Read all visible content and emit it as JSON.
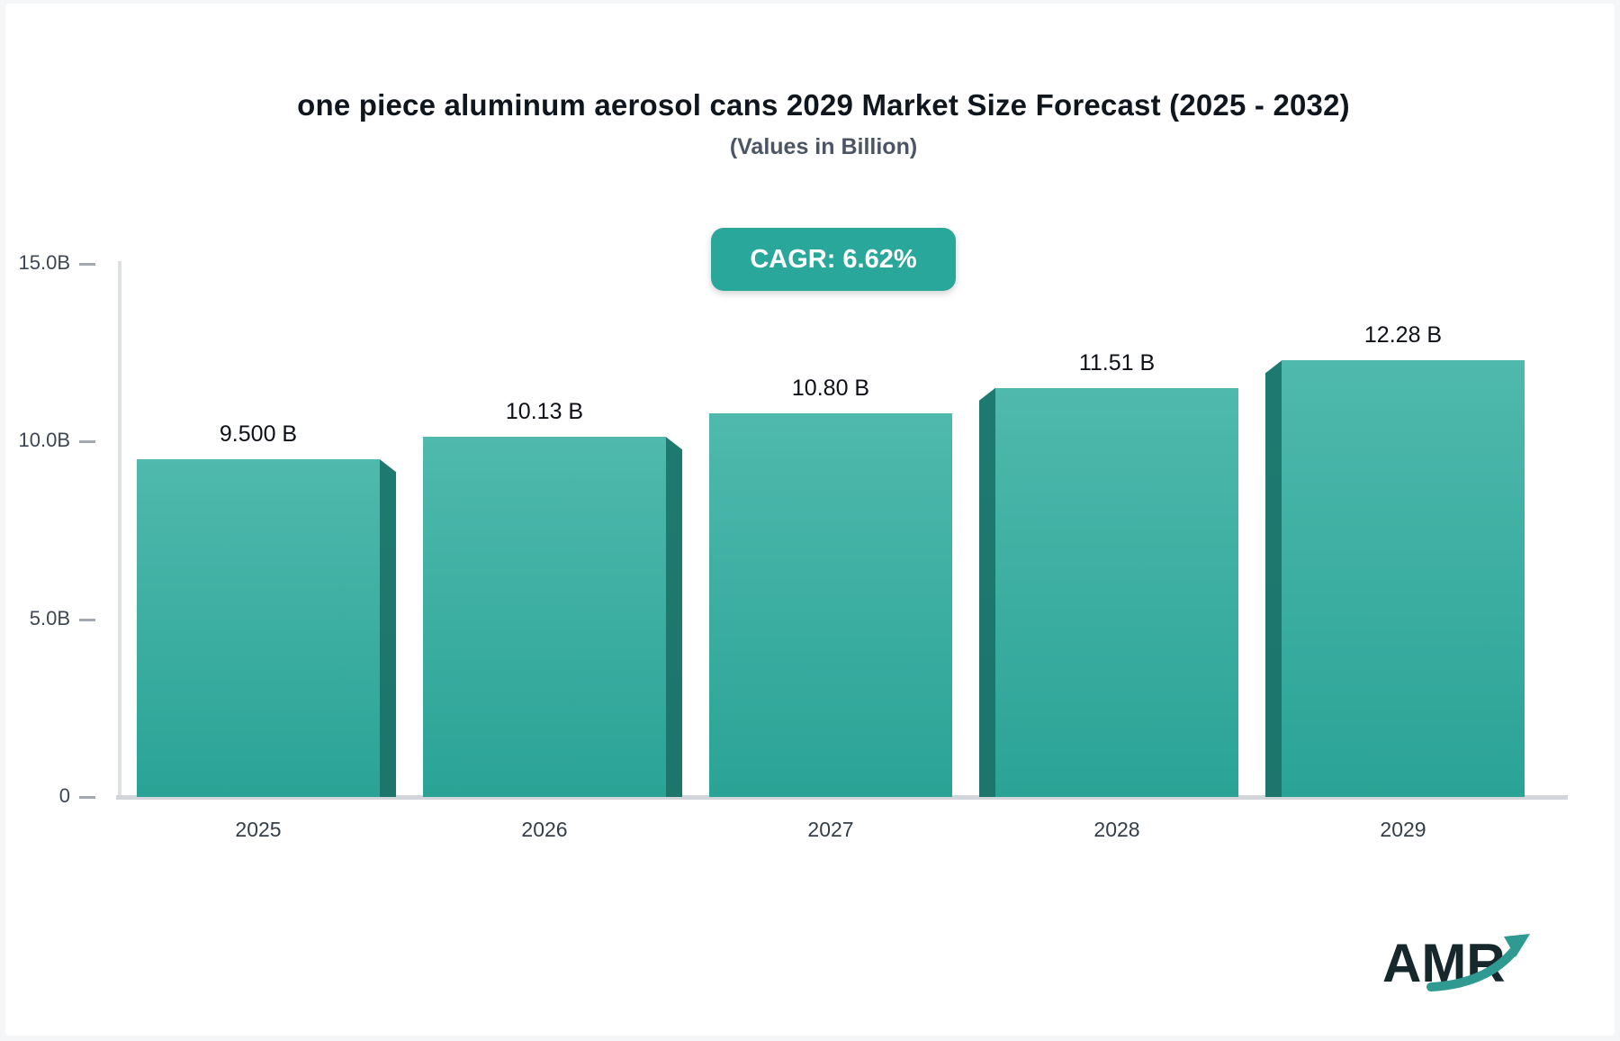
{
  "header": {
    "title": "one piece aluminum aerosol cans 2029 Market Size Forecast (2025 - 2032)",
    "subtitle": "(Values in Billion)",
    "cagr_label": "CAGR: 6.62%"
  },
  "chart_data": {
    "type": "bar",
    "title": "one piece aluminum aerosol cans 2029 Market Size Forecast (2025 - 2032)",
    "subtitle": "(Values in Billion)",
    "cagr_pct": 6.62,
    "categories": [
      "2025",
      "2026",
      "2027",
      "2028",
      "2029"
    ],
    "values": [
      9.5,
      10.13,
      10.8,
      11.51,
      12.28
    ],
    "value_labels": [
      "9.500 B",
      "10.13 B",
      "10.80 B",
      "11.51 B",
      "12.28 B"
    ],
    "unit": "Billion",
    "ylim": [
      0,
      15
    ],
    "yticks": [
      0,
      5,
      10,
      15
    ],
    "ytick_labels": [
      "0",
      "5.0B",
      "10.0B",
      "15.0B"
    ],
    "grid": false,
    "legend": false,
    "colors": {
      "bar_top": "#4fb9ad",
      "bar_bottom": "#2aa396",
      "bar_side": "#1e7a70",
      "bar_side_dark": "#1d756c",
      "accent": "#2aa79b",
      "axis_line": "#d2d5d9",
      "tick_text": "#3d4653"
    }
  },
  "logo": {
    "text": "AMR",
    "arrow_icon": "growth-arrow-icon",
    "text_color": "#16282c",
    "arrow_color": "#2e9a91"
  }
}
